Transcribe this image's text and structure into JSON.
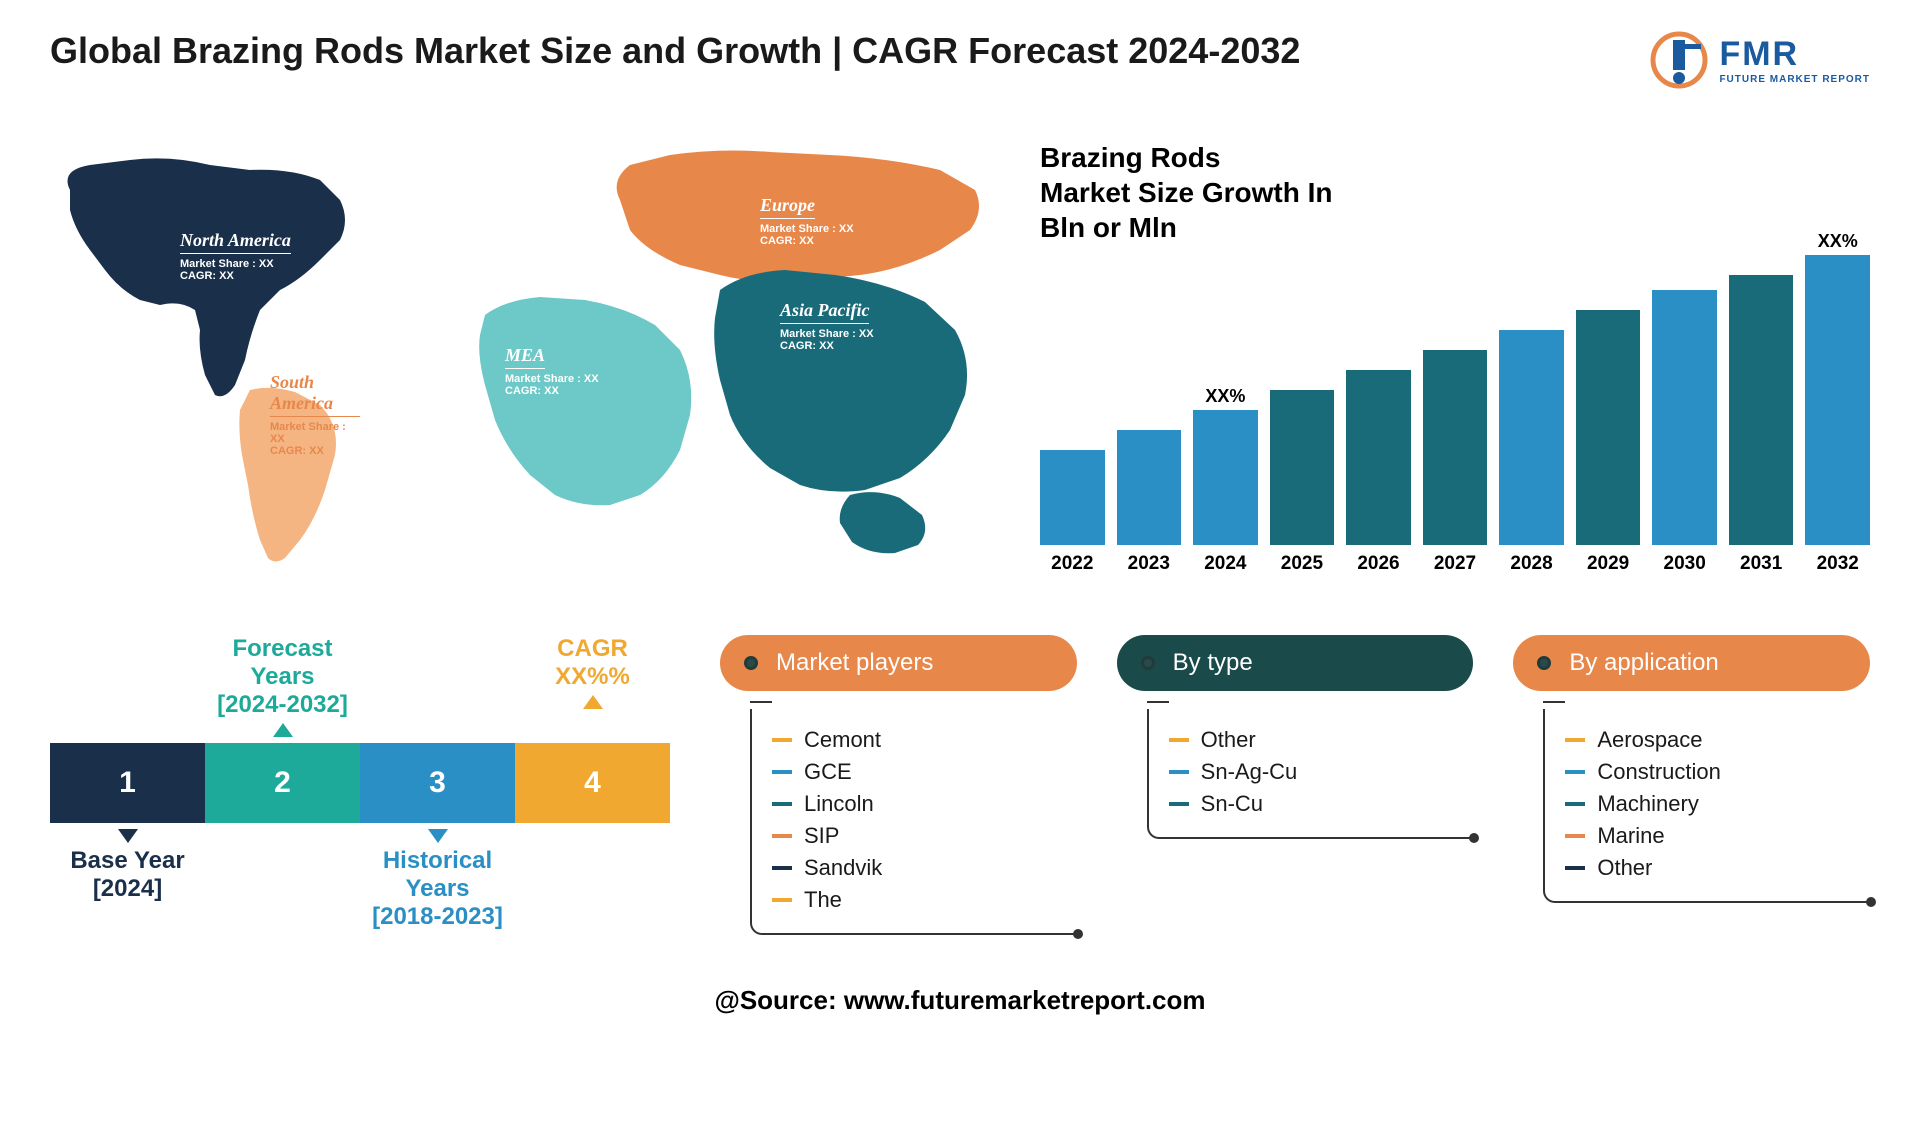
{
  "title": "Global Brazing Rods Market Size and Growth | CAGR Forecast 2024-2032",
  "logo": {
    "fmr": "FMR",
    "sub": "FUTURE MARKET REPORT"
  },
  "regions": {
    "north_america": {
      "name": "North America",
      "share": "Market Share : XX",
      "cagr": "CAGR: XX",
      "color": "#1a2f4a"
    },
    "south_america": {
      "name": "South America",
      "share": "Market Share : XX",
      "cagr": "CAGR: XX",
      "color": "#f5b583"
    },
    "europe": {
      "name": "Europe",
      "share": "Market Share : XX",
      "cagr": "CAGR: XX",
      "color": "#e8874a"
    },
    "mea": {
      "name": "MEA",
      "share": "Market Share : XX",
      "cagr": "CAGR: XX",
      "color": "#6dc8c8"
    },
    "asia_pacific": {
      "name": "Asia Pacific",
      "share": "Market Share : XX",
      "cagr": "CAGR: XX",
      "color": "#1a6b7a"
    }
  },
  "chart": {
    "title_l1": "Brazing Rods",
    "title_l2": "Market Size Growth In",
    "title_l3": "Bln or Mln",
    "years": [
      "2022",
      "2023",
      "2024",
      "2025",
      "2026",
      "2027",
      "2028",
      "2029",
      "2030",
      "2031",
      "2032"
    ],
    "values": [
      95,
      115,
      135,
      155,
      175,
      195,
      215,
      235,
      255,
      270,
      290
    ],
    "max": 300,
    "labels": {
      "2": "XX%",
      "10": "XX%"
    },
    "bar_colors": [
      "#2a8fc4",
      "#2a8fc4",
      "#2a8fc4",
      "#1a6b7a",
      "#1a6b7a",
      "#1a6b7a",
      "#2a8fc4",
      "#1a6b7a",
      "#2a8fc4",
      "#1a6b7a",
      "#2a8fc4"
    ]
  },
  "timeline": {
    "forecast": {
      "label": "Forecast Years",
      "range": "[2024-2032]",
      "color": "#1eaa9a"
    },
    "cagr": {
      "label": "CAGR",
      "range": "XX%%",
      "color": "#f0a830"
    },
    "base": {
      "label": "Base Year",
      "range": "[2024]",
      "color": "#1a2f4a"
    },
    "hist": {
      "label": "Historical Years",
      "range": "[2018-2023]",
      "color": "#2a8fc4"
    },
    "segments": [
      {
        "num": "1",
        "color": "#1a2f4a"
      },
      {
        "num": "2",
        "color": "#1eaa9a"
      },
      {
        "num": "3",
        "color": "#2a8fc4"
      },
      {
        "num": "4",
        "color": "#f0a830"
      }
    ]
  },
  "columns": {
    "players": {
      "title": "Market players",
      "pill_color": "#e8874a",
      "items": [
        {
          "t": "Cemont",
          "c": "#f0a830"
        },
        {
          "t": "GCE",
          "c": "#2a8fc4"
        },
        {
          "t": "Lincoln",
          "c": "#1a6b7a"
        },
        {
          "t": "SIP",
          "c": "#e8874a"
        },
        {
          "t": "Sandvik",
          "c": "#1a2f4a"
        },
        {
          "t": "The",
          "c": "#f0a830"
        }
      ]
    },
    "type": {
      "title": "By type",
      "pill_color": "#1a4a4a",
      "items": [
        {
          "t": "Other",
          "c": "#f0a830"
        },
        {
          "t": "Sn-Ag-Cu",
          "c": "#2a8fc4"
        },
        {
          "t": "Sn-Cu",
          "c": "#1a6b7a"
        }
      ]
    },
    "application": {
      "title": "By application",
      "pill_color": "#e8874a",
      "items": [
        {
          "t": "Aerospace",
          "c": "#f0a830"
        },
        {
          "t": "Construction",
          "c": "#2a8fc4"
        },
        {
          "t": "Machinery",
          "c": "#1a6b7a"
        },
        {
          "t": "Marine",
          "c": "#e8874a"
        },
        {
          "t": "Other",
          "c": "#1a2f4a"
        }
      ]
    }
  },
  "source": "@Source: www.futuremarketreport.com",
  "tick_palette": [
    "#f0a830",
    "#2a8fc4",
    "#1a6b7a",
    "#e8874a",
    "#1a2f4a"
  ]
}
